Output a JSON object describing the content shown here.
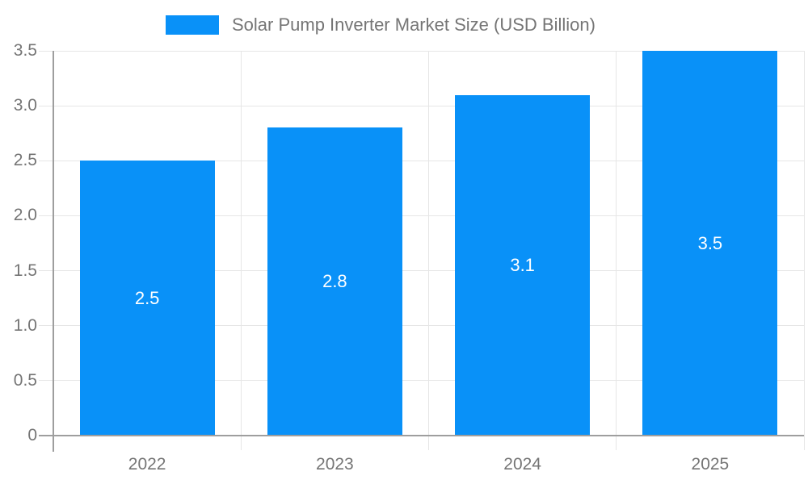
{
  "legend": {
    "label": "Solar Pump Inverter Market Size (USD Billion)"
  },
  "chart_data": {
    "type": "bar",
    "title": "Solar Pump Inverter Market Size (USD Billion)",
    "series_name": "Solar Pump Inverter Market Size (USD Billion)",
    "categories": [
      "2022",
      "2023",
      "2024",
      "2025"
    ],
    "values": [
      2.5,
      2.8,
      3.1,
      3.5
    ],
    "data_labels": [
      "2.5",
      "2.8",
      "3.1",
      "3.5"
    ],
    "xlabel": "",
    "ylabel": "",
    "ylim": [
      0,
      3.5
    ],
    "ytick_interval": 0.5,
    "ytick_labels": [
      "0",
      "0.5",
      "1.0",
      "1.5",
      "2.0",
      "2.5",
      "3.0",
      "3.5"
    ],
    "grid": true,
    "legend_position": "top",
    "colors": {
      "bar": "#0991f8",
      "gridline": "#e6e6e6",
      "axis": "#9e9e9e",
      "tick_label": "#757575",
      "legend_text": "#757575",
      "data_label": "#ffffff",
      "background": "#ffffff"
    }
  }
}
